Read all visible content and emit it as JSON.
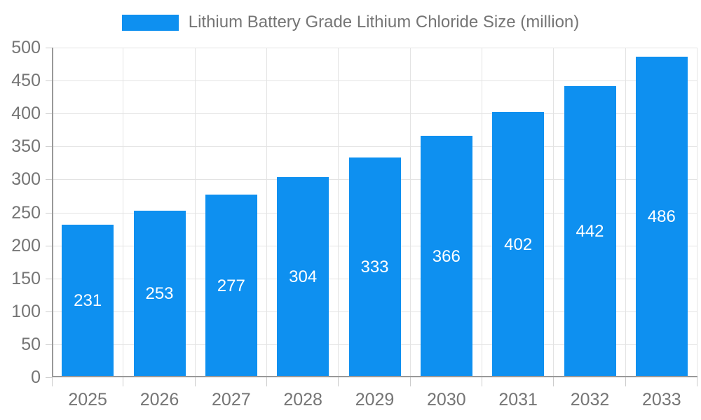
{
  "legend": {
    "label": "Lithium Battery Grade Lithium Chloride Size (million)"
  },
  "chart_data": {
    "type": "bar",
    "title": "Lithium Battery Grade Lithium Chloride Size (million)",
    "categories": [
      "2025",
      "2026",
      "2027",
      "2028",
      "2029",
      "2030",
      "2031",
      "2032",
      "2033"
    ],
    "values": [
      231,
      253,
      277,
      304,
      333,
      366,
      402,
      442,
      486
    ],
    "xlabel": "",
    "ylabel": "",
    "ylim": [
      0,
      500
    ],
    "ytick_step": 50,
    "yticks": [
      0,
      50,
      100,
      150,
      200,
      250,
      300,
      350,
      400,
      450,
      500
    ],
    "grid": "on",
    "legend_position": "top-center",
    "value_label_position": "inside-center",
    "colors": {
      "bar": "#0e90f0",
      "axis_line": "#999999",
      "tick": "#cccccc",
      "gridline": "#e3e3e3",
      "axis_text": "#757575",
      "bar_label_text": "#ffffff",
      "background": "#ffffff"
    }
  }
}
